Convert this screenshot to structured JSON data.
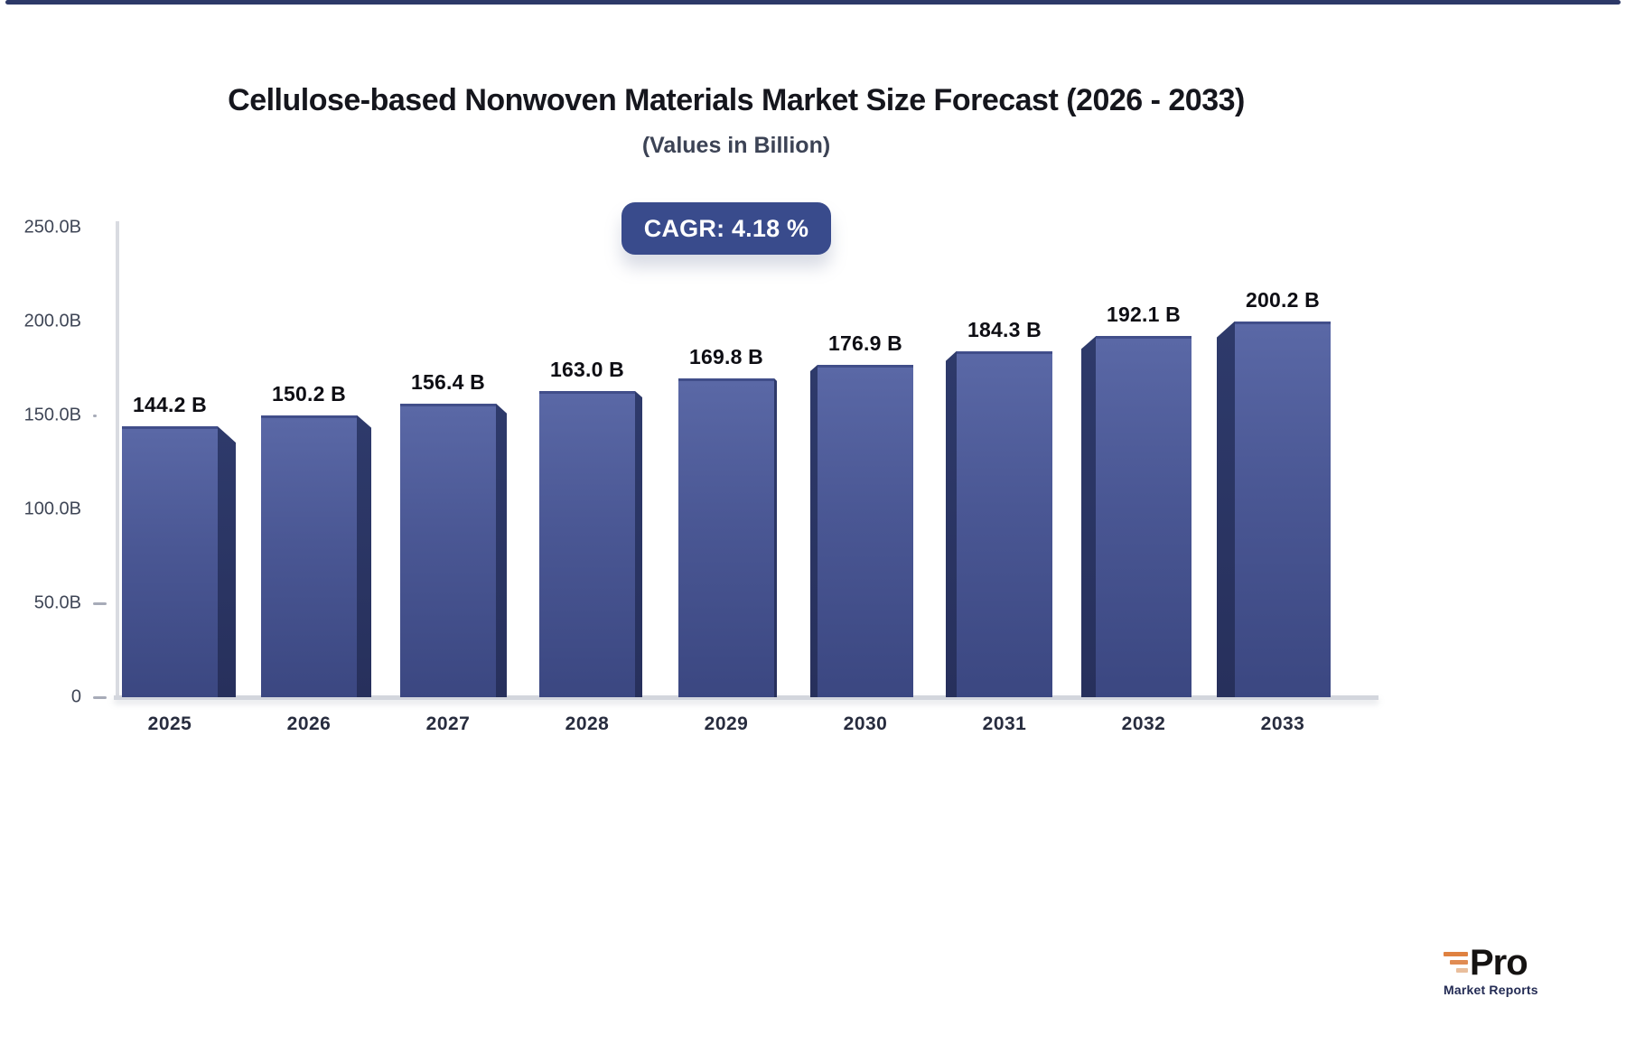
{
  "header": {
    "title": "Cellulose-based Nonwoven Materials Market Size Forecast (2026 - 2033)",
    "subtitle": "(Values in Billion)"
  },
  "cagr_badge": {
    "label": "CAGR: 4.18 %"
  },
  "branding": {
    "name": "Pro",
    "tagline": "Market Reports"
  },
  "colors": {
    "accent_badge": "#394B8C",
    "top_accent_bar": "#2D3968",
    "bar_gradient_top": "#5A68A6",
    "bar_gradient_bottom": "#3B4781",
    "bar_side_face": "#2B3564",
    "axis_gray": "#D9DBE1",
    "title_text": "#15161D",
    "subtitle_text": "#3C4355",
    "tick_label_text": "#3F4656",
    "year_label_text": "#272C3E",
    "value_label_text": "#0E0E14",
    "logo_orange": "#DF8140"
  },
  "chart_data": {
    "type": "bar",
    "style": "3d-perspective-extruded-bars",
    "title": "Cellulose-based Nonwoven Materials Market Size Forecast (2026 - 2033)",
    "subtitle": "(Values in Billion)",
    "cagr_percent": 4.18,
    "units": "Billion",
    "categories": [
      "2025",
      "2026",
      "2027",
      "2028",
      "2029",
      "2030",
      "2031",
      "2032",
      "2033"
    ],
    "values": [
      144.2,
      150.2,
      156.4,
      163.0,
      169.8,
      176.9,
      184.3,
      192.1,
      200.2
    ],
    "bar_labels": [
      "144.2 B",
      "150.2 B",
      "156.4 B",
      "163.0 B",
      "169.8 B",
      "176.9 B",
      "184.3 B",
      "192.1 B",
      "200.2 B"
    ],
    "xlabel": "",
    "ylabel": "",
    "ylim": [
      0,
      250
    ],
    "yticks": [
      {
        "value": 0,
        "label": "0"
      },
      {
        "value": 50,
        "label": "50.0B"
      },
      {
        "value": 100,
        "label": "100.0B"
      },
      {
        "value": 150,
        "label": "150.0B"
      },
      {
        "value": 200,
        "label": "200.0B"
      },
      {
        "value": 250,
        "label": "250.0B"
      }
    ],
    "grid": false,
    "legend_position": "none"
  }
}
